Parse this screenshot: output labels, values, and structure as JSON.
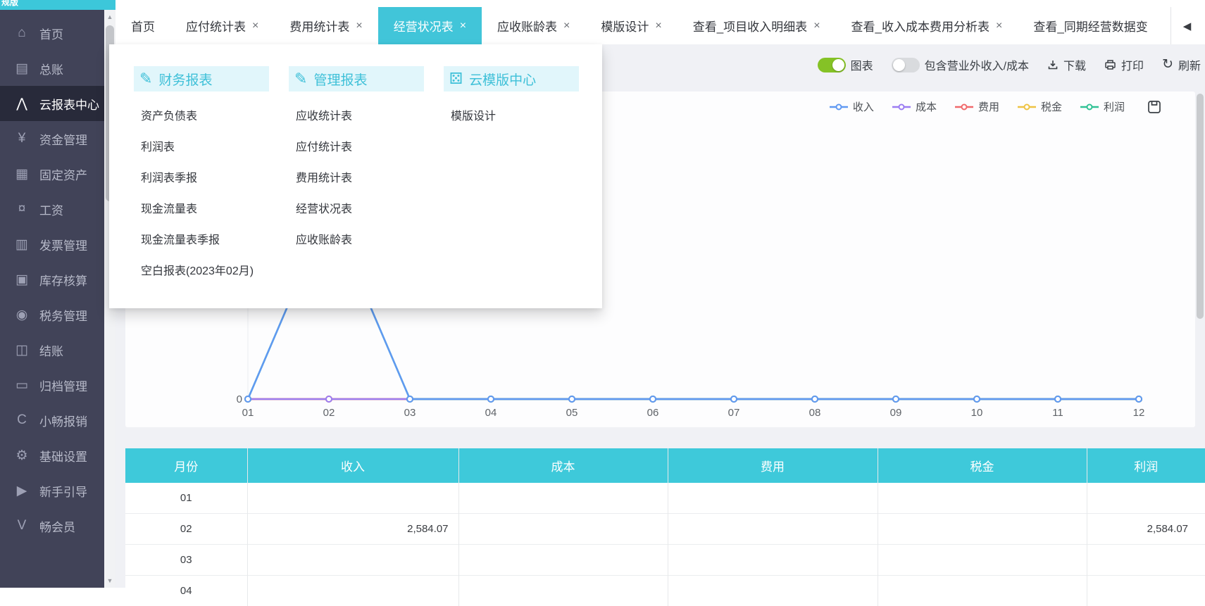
{
  "brand": {
    "clipped_text": "规版"
  },
  "sidebar": {
    "items": [
      {
        "icon": "⌂",
        "label": "首页"
      },
      {
        "icon": "▤",
        "label": "总账"
      },
      {
        "icon": "⋀",
        "label": "云报表中心",
        "active": true
      },
      {
        "icon": "¥",
        "label": "资金管理"
      },
      {
        "icon": "▦",
        "label": "固定资产"
      },
      {
        "icon": "¤",
        "label": "工资"
      },
      {
        "icon": "▥",
        "label": "发票管理"
      },
      {
        "icon": "▣",
        "label": "库存核算"
      },
      {
        "icon": "◉",
        "label": "税务管理"
      },
      {
        "icon": "◫",
        "label": "结账"
      },
      {
        "icon": "▭",
        "label": "归档管理"
      },
      {
        "icon": "C",
        "label": "小畅报销"
      },
      {
        "icon": "⚙",
        "label": "基础设置"
      },
      {
        "icon": "▶",
        "label": "新手引导"
      },
      {
        "icon": "V",
        "label": "畅会员"
      }
    ]
  },
  "tabs": {
    "items": [
      {
        "label": "首页",
        "closable": false
      },
      {
        "label": "应付统计表",
        "closable": true
      },
      {
        "label": "费用统计表",
        "closable": true
      },
      {
        "label": "经营状况表",
        "closable": true,
        "active": true
      },
      {
        "label": "应收账龄表",
        "closable": true
      },
      {
        "label": "模版设计",
        "closable": true
      },
      {
        "label": "查看_项目收入明细表",
        "closable": true
      },
      {
        "label": "查看_收入成本费用分析表",
        "closable": true
      },
      {
        "label": "查看_同期经营数据变",
        "closable": false
      }
    ],
    "close_glyph": "×",
    "collapse_icon": "◀"
  },
  "toolbar": {
    "chart_toggle_label": "图表",
    "chart_toggle_on": true,
    "nonoperating_toggle_label": "包含营业外收入/成本",
    "nonoperating_toggle_on": false,
    "download_label": "下载",
    "print_label": "打印",
    "refresh_label": "刷新",
    "refresh_glyph": "↻"
  },
  "report_menu": {
    "sections": [
      {
        "title": "财务报表",
        "icon": "✎",
        "items": [
          "资产负债表",
          "利润表",
          "利润表季报",
          "现金流量表",
          "现金流量表季报",
          "空白报表(2023年02月)"
        ]
      },
      {
        "title": "管理报表",
        "icon": "✎",
        "items": [
          "应收统计表",
          "应付统计表",
          "费用统计表",
          "经营状况表",
          "应收账龄表"
        ]
      },
      {
        "title": "云模版中心",
        "icon": "⚄",
        "items": [
          "模版设计"
        ]
      }
    ]
  },
  "chart_data": {
    "type": "line",
    "categories": [
      "01",
      "02",
      "03",
      "04",
      "05",
      "06",
      "07",
      "08",
      "09",
      "10",
      "11",
      "12"
    ],
    "series": [
      {
        "name": "收入",
        "color": "#6099f2",
        "values": [
          0,
          2584.07,
          0,
          0,
          0,
          0,
          0,
          0,
          0,
          0,
          0,
          0
        ]
      },
      {
        "name": "成本",
        "color": "#9b7df2",
        "values": [
          0,
          0,
          0,
          0,
          0,
          0,
          0,
          0,
          0,
          0,
          0,
          0
        ]
      },
      {
        "name": "费用",
        "color": "#f0696b",
        "values": [
          0,
          0,
          0,
          0,
          0,
          0,
          0,
          0,
          0,
          0,
          0,
          0
        ]
      },
      {
        "name": "税金",
        "color": "#eec343",
        "values": [
          0,
          0,
          0,
          0,
          0,
          0,
          0,
          0,
          0,
          0,
          0,
          0
        ]
      },
      {
        "name": "利润",
        "color": "#30c295",
        "values": [
          0,
          2584.07,
          0,
          0,
          0,
          0,
          0,
          0,
          0,
          0,
          0,
          0
        ]
      }
    ],
    "y_zero_label": "0",
    "ylim": [
      0,
      3000
    ],
    "grid": false,
    "legend_position": "top-right"
  },
  "table": {
    "headers": [
      "月份",
      "收入",
      "成本",
      "费用",
      "税金",
      "利润"
    ],
    "rows": [
      [
        "01",
        "",
        "",
        "",
        "",
        ""
      ],
      [
        "02",
        "2,584.07",
        "",
        "",
        "",
        "2,584.07"
      ],
      [
        "03",
        "",
        "",
        "",
        "",
        ""
      ],
      [
        "04",
        "",
        "",
        "",
        "",
        ""
      ]
    ]
  }
}
